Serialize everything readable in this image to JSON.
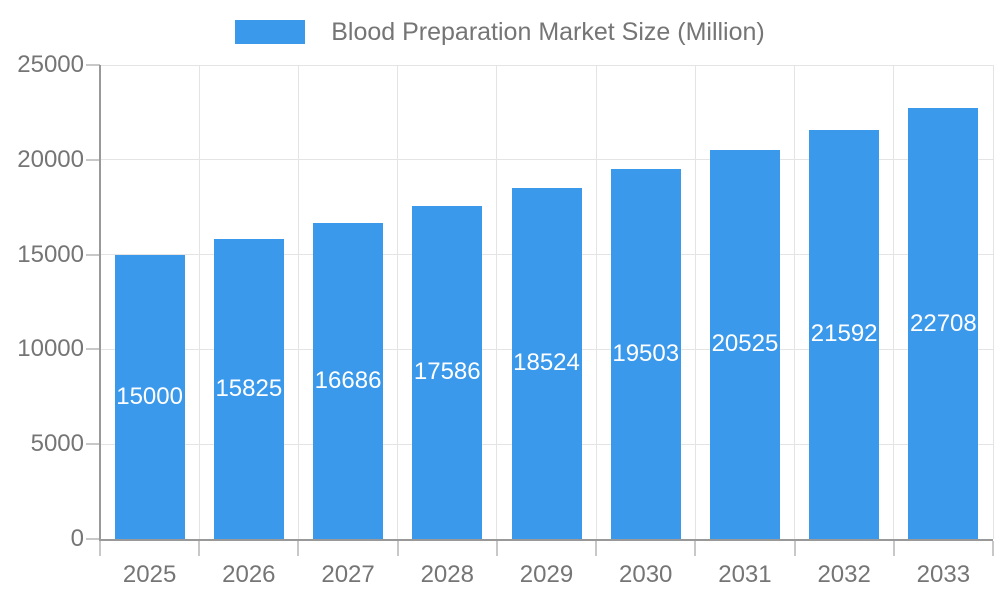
{
  "chart_data": {
    "type": "bar",
    "title": "",
    "legend": [
      "Blood Preparation Market Size (Million)"
    ],
    "legend_position": "top-center",
    "categories": [
      "2025",
      "2026",
      "2027",
      "2028",
      "2029",
      "2030",
      "2031",
      "2032",
      "2033"
    ],
    "values": [
      15000,
      15825,
      16686,
      17586,
      18524,
      19503,
      20525,
      21592,
      22708
    ],
    "data_labels": "white text centered inside each bar",
    "xlabel": "",
    "ylabel": "",
    "ylim": [
      0,
      25000
    ],
    "yticks": [
      0,
      5000,
      10000,
      15000,
      20000,
      25000
    ],
    "grid": true
  },
  "colors": {
    "bar": "#3B99EC",
    "bar_label": "#FFFFFF",
    "tick_label": "#757575",
    "legend_label": "#757575",
    "grid_line": "#E4E4E4",
    "axis_line": "#999999",
    "tick_mark": "#C8C8C8",
    "background": "#FFFFFF"
  }
}
